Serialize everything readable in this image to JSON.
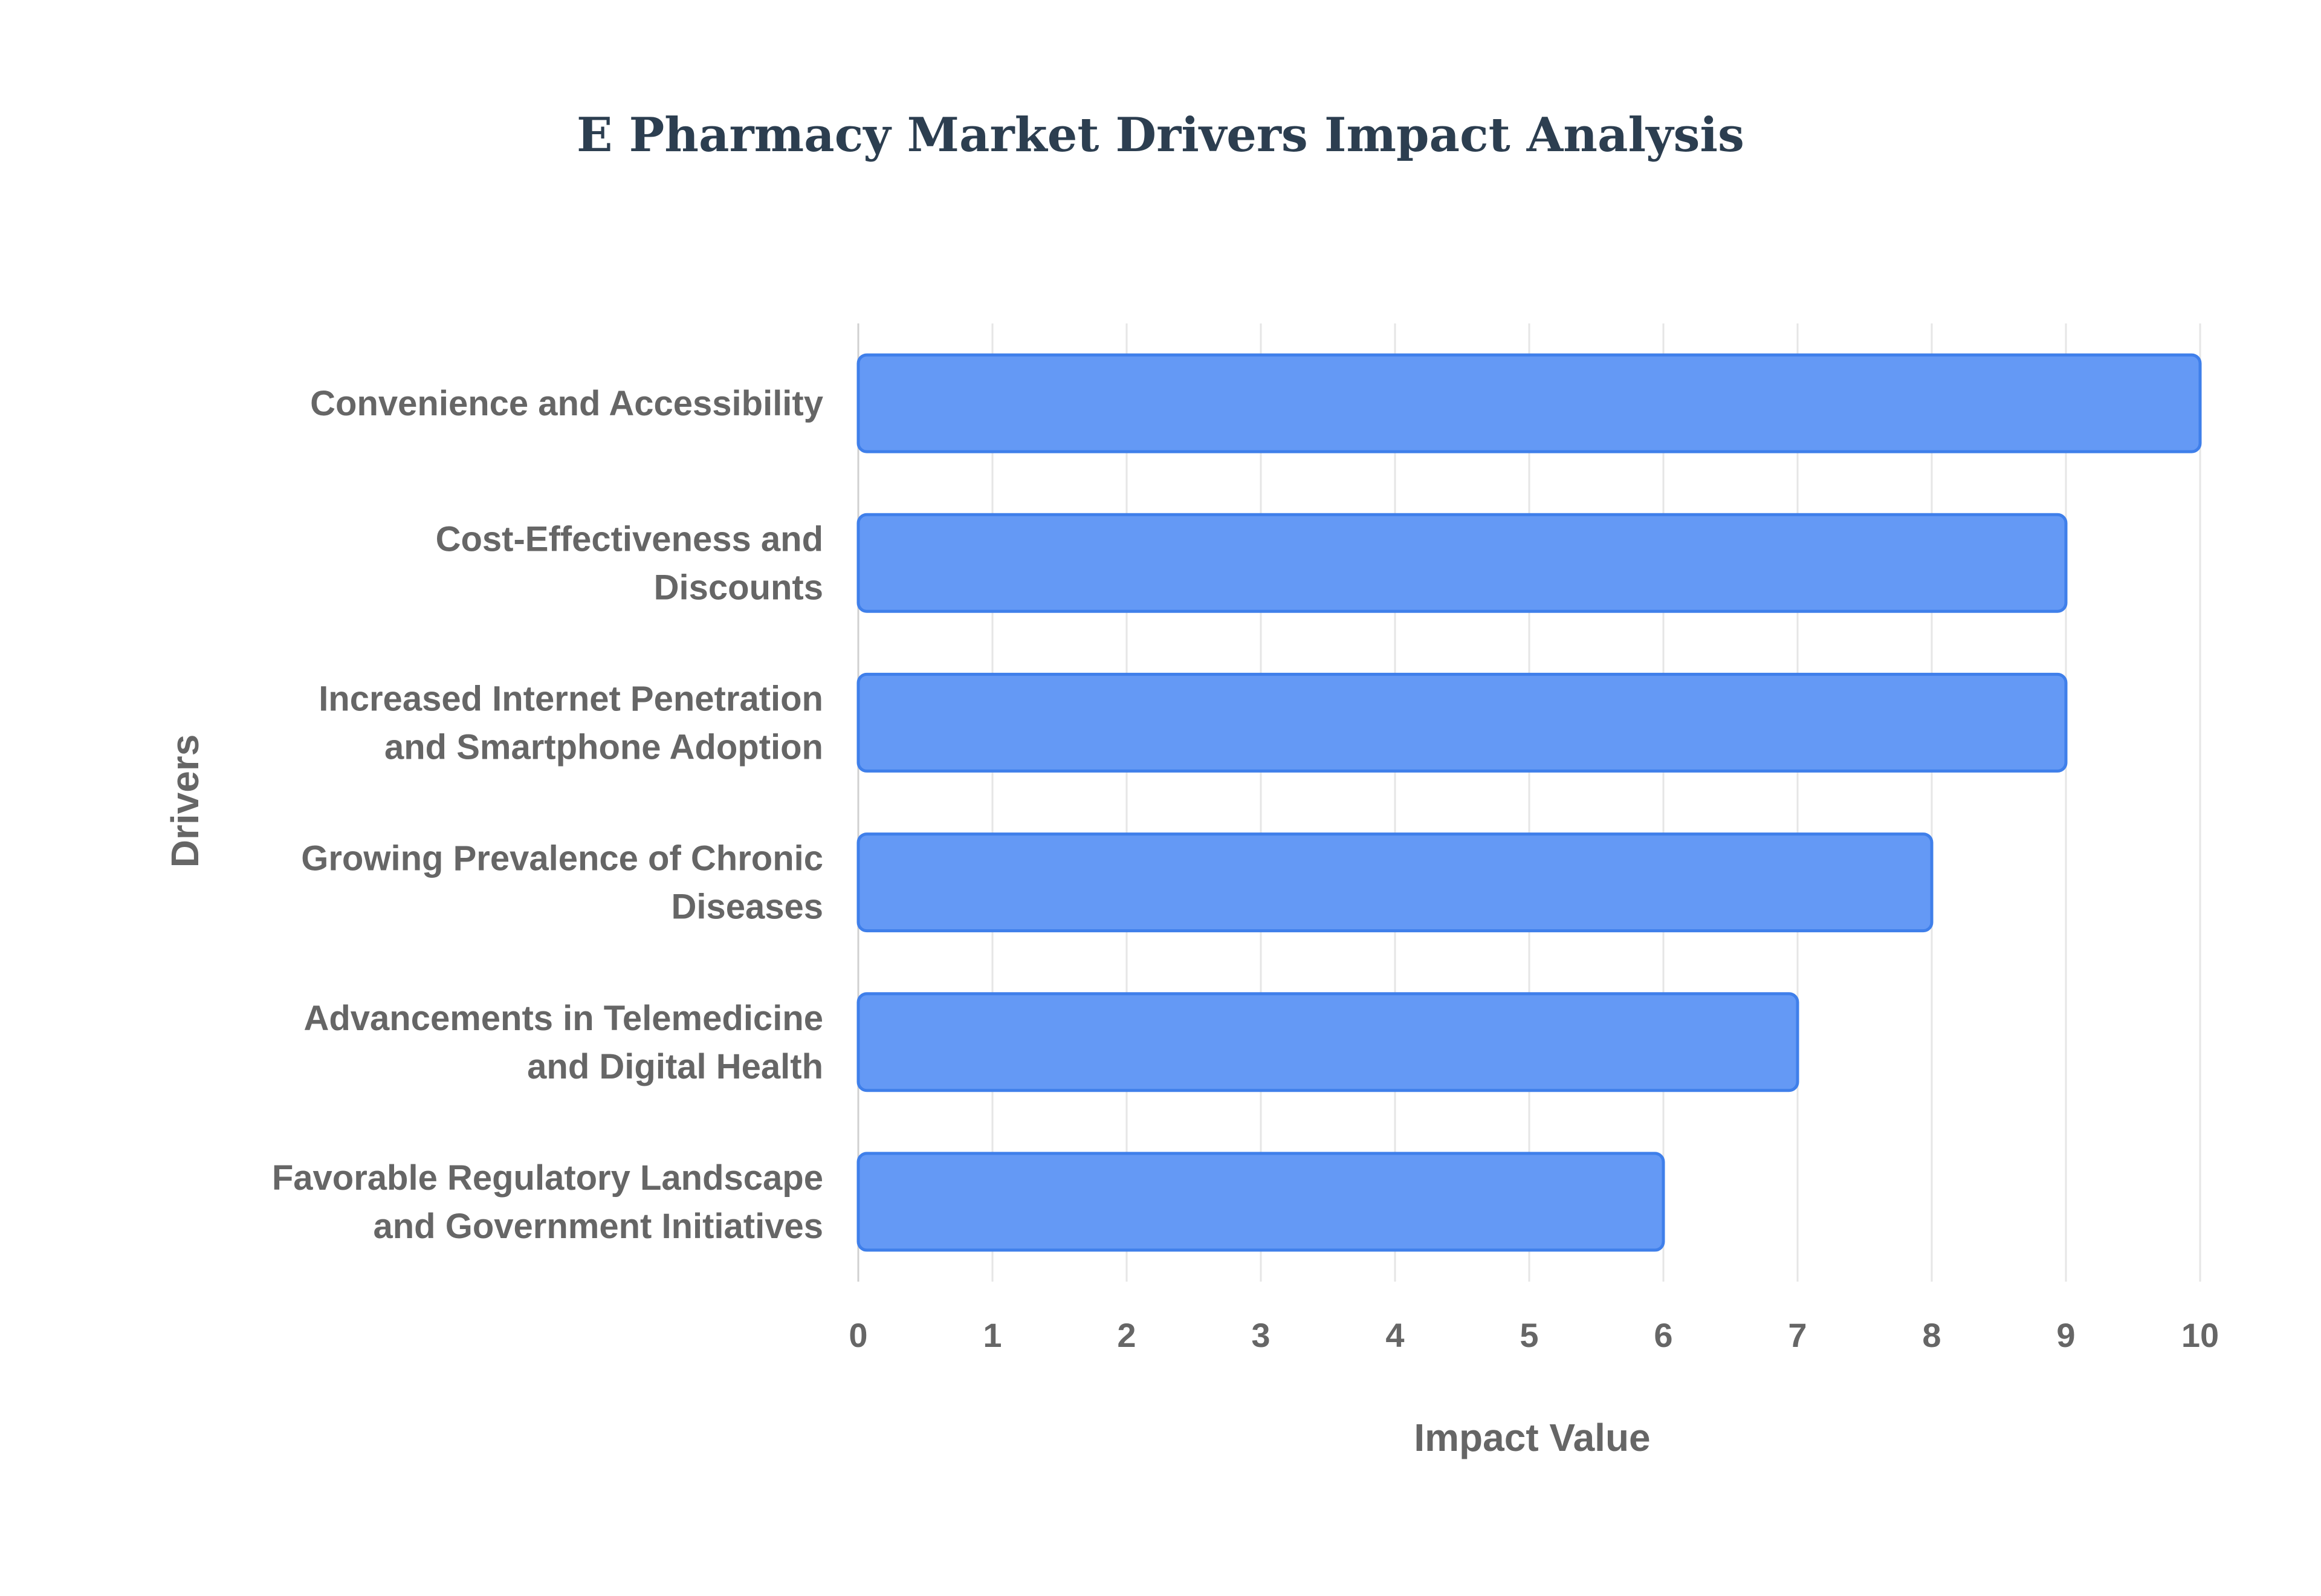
{
  "chart_data": {
    "type": "bar",
    "orientation": "horizontal",
    "title": "E Pharmacy Market Drivers Impact Analysis",
    "xlabel": "Impact Value",
    "ylabel": "Drivers",
    "xlim": [
      0,
      10
    ],
    "x_ticks": [
      0,
      1,
      2,
      3,
      4,
      5,
      6,
      7,
      8,
      9,
      10
    ],
    "grid": true,
    "legend": "none",
    "categories": [
      [
        "Convenience and Accessibility"
      ],
      [
        "Cost-Effectiveness and",
        "Discounts"
      ],
      [
        "Increased Internet Penetration",
        "and Smartphone Adoption"
      ],
      [
        "Growing Prevalence of Chronic",
        "Diseases"
      ],
      [
        "Advancements in Telemedicine",
        "and Digital Health"
      ],
      [
        "Favorable Regulatory Landscape",
        "and Government Initiatives"
      ]
    ],
    "values": [
      10,
      9,
      9,
      8,
      7,
      6
    ]
  },
  "colors": {
    "bar_fill": "#6499f5",
    "bar_stroke": "#3f7fea",
    "title": "#2c3e50",
    "label": "#666666",
    "grid": "#e6e6e6"
  }
}
